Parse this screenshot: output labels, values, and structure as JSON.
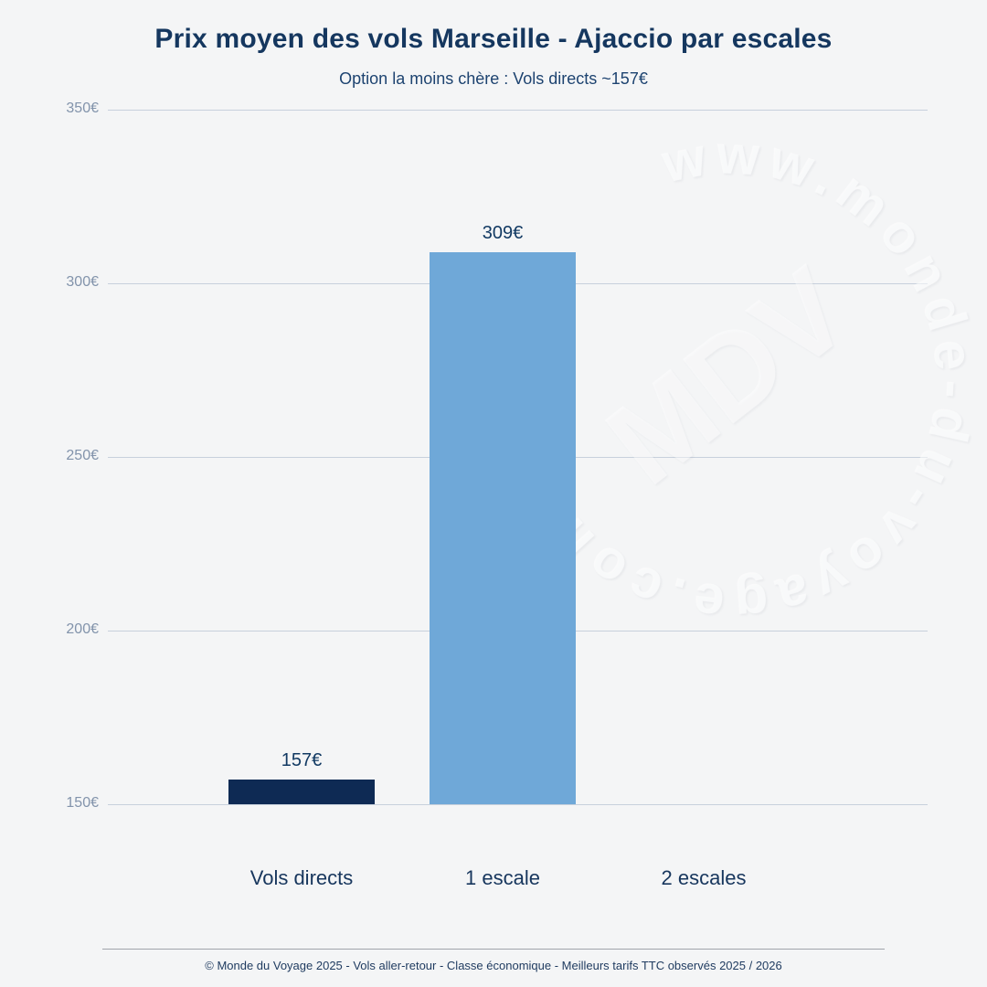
{
  "chart": {
    "title": "Prix moyen des vols Marseille - Ajaccio par escales",
    "subtitle": "Option la moins chère : Vols directs ~157€"
  },
  "chart_data": {
    "type": "bar",
    "categories": [
      "Vols directs",
      "1 escale",
      "2 escales"
    ],
    "values": [
      157,
      309,
      null
    ],
    "value_labels": [
      "157€",
      "309€",
      ""
    ],
    "bar_colors": [
      "#0e2a54",
      "#6fa8d8",
      null
    ],
    "title": "Prix moyen des vols Marseille - Ajaccio par escales",
    "subtitle": "Option la moins chère : Vols directs ~157€",
    "xlabel": "",
    "ylabel": "",
    "ylim": [
      150,
      350
    ],
    "yticks": [
      350,
      300,
      250,
      200,
      150
    ],
    "ytick_labels": [
      "350€",
      "300€",
      "250€",
      "200€",
      "150€"
    ],
    "grid": true,
    "legend": "none"
  },
  "watermark": {
    "circle_text": "www.monde-du-voyage.com .",
    "center_text": "MDV"
  },
  "footer": {
    "text": "© Monde du Voyage 2025 - Vols aller-retour - Classe économique - Meilleurs tarifs TTC observés 2025 / 2026"
  }
}
